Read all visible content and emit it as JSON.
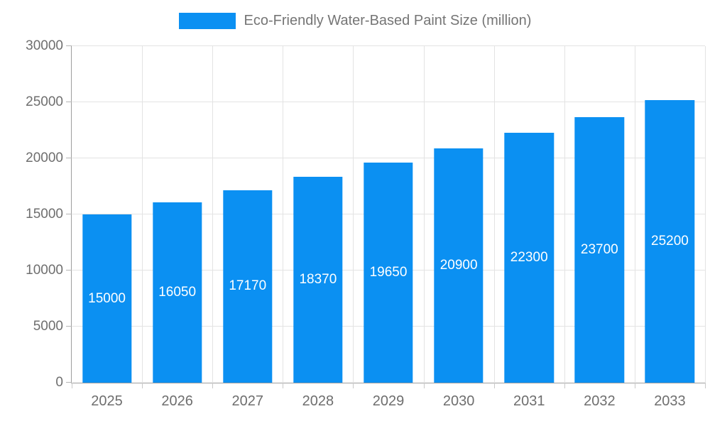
{
  "legend": {
    "label": "Eco-Friendly Water-Based Paint Size (million)"
  },
  "chart_data": {
    "type": "bar",
    "title": "Eco-Friendly Water-Based Paint Size (million)",
    "series_name": "Eco-Friendly Water-Based Paint Size (million)",
    "categories": [
      "2025",
      "2026",
      "2027",
      "2028",
      "2029",
      "2030",
      "2031",
      "2032",
      "2033"
    ],
    "values": [
      15000,
      16050,
      17170,
      18370,
      19650,
      20900,
      22300,
      23700,
      25200
    ],
    "xlabel": "",
    "ylabel": "",
    "ylim": [
      0,
      30000
    ],
    "yticks": [
      0,
      5000,
      10000,
      15000,
      20000,
      25000,
      30000
    ],
    "grid": true,
    "legend_position": "top-center",
    "value_labels": "inside-middle",
    "bar_width_fraction": 0.7,
    "colors": {
      "bar": "#0b90f2",
      "value_label": "#ffffff",
      "grid_line": "#e3e3e3",
      "axis_line": "#9e9e9e",
      "y_tick_mark": "#b5b5b5",
      "x_tick_mark": "#c9c9c9",
      "axis_text": "#6e6e6e",
      "legend_text": "#757575"
    }
  }
}
